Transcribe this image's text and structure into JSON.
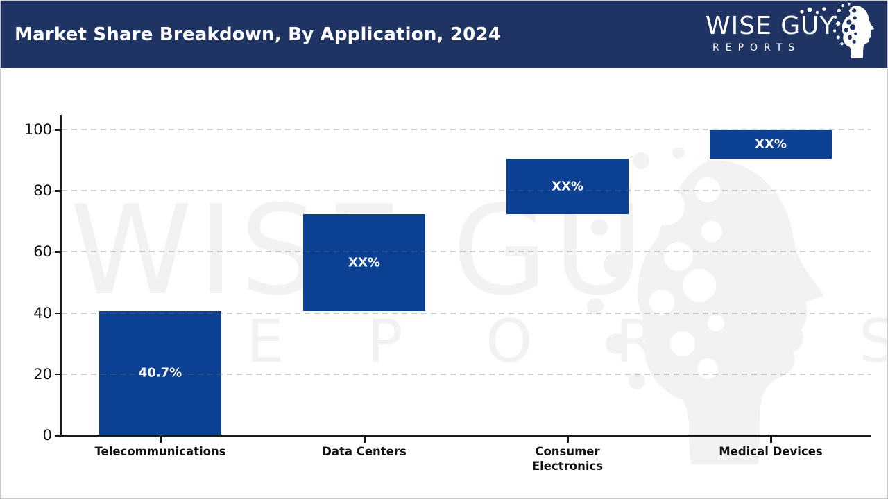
{
  "header": {
    "title": "Market Share Breakdown, By Application, 2024",
    "logo": {
      "line1": "WISE GUY",
      "line2": "R E P O R T S"
    }
  },
  "watermark": {
    "line1": "WISE GUY",
    "line2": "R E P O R T S"
  },
  "colors": {
    "header_bg": "#1f3463",
    "bar": "#0b4093",
    "axis": "#1a1a1a",
    "grid": "#d9d9d9",
    "watermark": "#f2f2f2",
    "bar_label": "#ffffff"
  },
  "chart_data": {
    "type": "bar",
    "subtype": "waterfall",
    "title": "Market Share Breakdown, By Application, 2024",
    "categories": [
      "Telecommunications",
      "Data Centers",
      "Consumer Electronics",
      "Medical Devices"
    ],
    "segments": [
      {
        "category": "Telecommunications",
        "start": 0,
        "end": 40.7,
        "label": "40.7%"
      },
      {
        "category": "Data Centers",
        "start": 40.7,
        "end": 72.3,
        "label": "XX%"
      },
      {
        "category": "Consumer Electronics",
        "start": 72.3,
        "end": 90.5,
        "label": "XX%"
      },
      {
        "category": "Medical Devices",
        "start": 90.5,
        "end": 100,
        "label": "XX%"
      }
    ],
    "ylabel": "",
    "xlabel": "",
    "ylim": [
      0,
      100
    ],
    "yticks": [
      0,
      20,
      40,
      60,
      80,
      100
    ],
    "grid": "horizontal-dashed",
    "legend": "none",
    "bar_color": "#0b4093"
  }
}
